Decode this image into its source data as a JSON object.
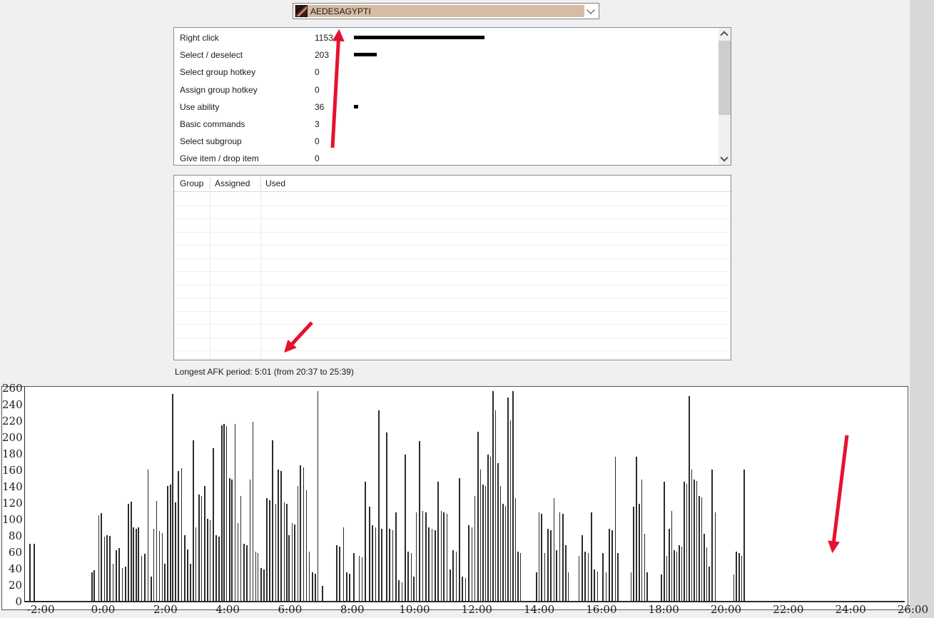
{
  "player_selector": {
    "selected_player": "AEDESAGYPTI",
    "icon": "player-race-icon"
  },
  "actions_panel": {
    "rows": [
      {
        "label": "Right click",
        "value": "1153",
        "count": 1153
      },
      {
        "label": "Select / deselect",
        "value": "203",
        "count": 203
      },
      {
        "label": "Select group hotkey",
        "value": "0",
        "count": 0
      },
      {
        "label": "Assign group hotkey",
        "value": "0",
        "count": 0
      },
      {
        "label": "Use ability",
        "value": "36",
        "count": 36
      },
      {
        "label": "Basic commands",
        "value": "3",
        "count": 3
      },
      {
        "label": "Select subgroup",
        "value": "0",
        "count": 0
      },
      {
        "label": "Give item / drop item",
        "value": "0",
        "count": 0
      }
    ]
  },
  "groups_table": {
    "columns": [
      "Group",
      "Assigned",
      "Used"
    ],
    "rows": []
  },
  "afk_label": "Longest AFK period: 5:01 (from 20:37 to 25:39)",
  "chart_data": {
    "type": "bar",
    "title": "",
    "xlabel": "",
    "ylabel": "",
    "ylim": [
      0,
      260
    ],
    "grid": false,
    "y_ticks": [
      0,
      20,
      40,
      60,
      80,
      100,
      120,
      140,
      160,
      180,
      200,
      220,
      240,
      260
    ],
    "x_ticks": [
      {
        "t": -2,
        "label": "-2:00"
      },
      {
        "t": 0,
        "label": "0:00"
      },
      {
        "t": 2,
        "label": "2:00"
      },
      {
        "t": 4,
        "label": "4:00"
      },
      {
        "t": 6,
        "label": "6:00"
      },
      {
        "t": 8,
        "label": "8:00"
      },
      {
        "t": 10,
        "label": "10:00"
      },
      {
        "t": 12,
        "label": "12:00"
      },
      {
        "t": 14,
        "label": "14:00"
      },
      {
        "t": 16,
        "label": "16:00"
      },
      {
        "t": 18,
        "label": "18:00"
      },
      {
        "t": 20,
        "label": "20:00"
      },
      {
        "t": 22,
        "label": "22:00"
      },
      {
        "t": 24,
        "label": "24:00"
      },
      {
        "t": 26,
        "label": "26:00"
      }
    ],
    "bars": [
      [
        -2.35,
        70
      ],
      [
        -2.21,
        70
      ],
      [
        -0.36,
        35
      ],
      [
        -0.29,
        37
      ],
      [
        -0.14,
        104
      ],
      [
        -0.06,
        107
      ],
      [
        0.05,
        78
      ],
      [
        0.12,
        80
      ],
      [
        0.22,
        79
      ],
      [
        0.32,
        45
      ],
      [
        0.42,
        62
      ],
      [
        0.52,
        64
      ],
      [
        0.62,
        40
      ],
      [
        0.72,
        42
      ],
      [
        0.82,
        118
      ],
      [
        0.9,
        121
      ],
      [
        0.97,
        90
      ],
      [
        1.06,
        88
      ],
      [
        1.14,
        90
      ],
      [
        1.24,
        55
      ],
      [
        1.34,
        57
      ],
      [
        1.44,
        160
      ],
      [
        1.54,
        30
      ],
      [
        1.63,
        88
      ],
      [
        1.72,
        122
      ],
      [
        1.81,
        85
      ],
      [
        1.9,
        83
      ],
      [
        1.98,
        45
      ],
      [
        2.08,
        140
      ],
      [
        2.16,
        142
      ],
      [
        2.24,
        252
      ],
      [
        2.33,
        120
      ],
      [
        2.42,
        158
      ],
      [
        2.52,
        162
      ],
      [
        2.62,
        80
      ],
      [
        2.72,
        63
      ],
      [
        2.81,
        45
      ],
      [
        2.9,
        196
      ],
      [
        2.98,
        90
      ],
      [
        3.08,
        130
      ],
      [
        3.16,
        128
      ],
      [
        3.26,
        140
      ],
      [
        3.35,
        100
      ],
      [
        3.44,
        98
      ],
      [
        3.54,
        186
      ],
      [
        3.63,
        80
      ],
      [
        3.72,
        78
      ],
      [
        3.82,
        214
      ],
      [
        3.89,
        216
      ],
      [
        3.96,
        213
      ],
      [
        4.06,
        150
      ],
      [
        4.14,
        148
      ],
      [
        4.24,
        216
      ],
      [
        4.33,
        95
      ],
      [
        4.42,
        128
      ],
      [
        4.52,
        70
      ],
      [
        4.62,
        68
      ],
      [
        4.72,
        148
      ],
      [
        4.81,
        218
      ],
      [
        4.9,
        60
      ],
      [
        4.97,
        58
      ],
      [
        5.08,
        40
      ],
      [
        5.16,
        38
      ],
      [
        5.26,
        125
      ],
      [
        5.35,
        123
      ],
      [
        5.44,
        196
      ],
      [
        5.54,
        118
      ],
      [
        5.63,
        160
      ],
      [
        5.72,
        158
      ],
      [
        5.82,
        120
      ],
      [
        5.9,
        118
      ],
      [
        5.97,
        80
      ],
      [
        6.07,
        95
      ],
      [
        6.15,
        93
      ],
      [
        6.25,
        140
      ],
      [
        6.34,
        165
      ],
      [
        6.44,
        163
      ],
      [
        6.53,
        135
      ],
      [
        6.62,
        60
      ],
      [
        6.72,
        35
      ],
      [
        6.81,
        33
      ],
      [
        6.9,
        256
      ],
      [
        7.05,
        18
      ],
      [
        7.5,
        68
      ],
      [
        7.6,
        66
      ],
      [
        7.72,
        90
      ],
      [
        7.82,
        35
      ],
      [
        7.92,
        33
      ],
      [
        8.05,
        58
      ],
      [
        8.22,
        55
      ],
      [
        8.32,
        53
      ],
      [
        8.42,
        145
      ],
      [
        8.55,
        115
      ],
      [
        8.65,
        92
      ],
      [
        8.75,
        90
      ],
      [
        8.85,
        232
      ],
      [
        8.95,
        88
      ],
      [
        9.1,
        205
      ],
      [
        9.2,
        88
      ],
      [
        9.3,
        86
      ],
      [
        9.4,
        108
      ],
      [
        9.5,
        25
      ],
      [
        9.6,
        23
      ],
      [
        9.7,
        178
      ],
      [
        9.8,
        60
      ],
      [
        9.9,
        58
      ],
      [
        9.98,
        30
      ],
      [
        10.06,
        108
      ],
      [
        10.16,
        195
      ],
      [
        10.26,
        110
      ],
      [
        10.36,
        108
      ],
      [
        10.46,
        90
      ],
      [
        10.56,
        88
      ],
      [
        10.66,
        86
      ],
      [
        10.76,
        145
      ],
      [
        10.86,
        110
      ],
      [
        10.94,
        108
      ],
      [
        11.04,
        106
      ],
      [
        11.14,
        38
      ],
      [
        11.24,
        62
      ],
      [
        11.34,
        60
      ],
      [
        11.44,
        150
      ],
      [
        11.54,
        30
      ],
      [
        11.64,
        28
      ],
      [
        11.74,
        92
      ],
      [
        11.84,
        90
      ],
      [
        11.94,
        128
      ],
      [
        12.04,
        206
      ],
      [
        12.12,
        160
      ],
      [
        12.2,
        142
      ],
      [
        12.28,
        140
      ],
      [
        12.36,
        178
      ],
      [
        12.44,
        176
      ],
      [
        12.52,
        256
      ],
      [
        12.6,
        232
      ],
      [
        12.68,
        168
      ],
      [
        12.76,
        140
      ],
      [
        12.84,
        118
      ],
      [
        12.92,
        116
      ],
      [
        13.0,
        248
      ],
      [
        13.08,
        220
      ],
      [
        13.16,
        256
      ],
      [
        13.24,
        125
      ],
      [
        13.32,
        60
      ],
      [
        13.4,
        58
      ],
      [
        13.92,
        35
      ],
      [
        14.0,
        108
      ],
      [
        14.08,
        106
      ],
      [
        14.18,
        58
      ],
      [
        14.28,
        88
      ],
      [
        14.38,
        86
      ],
      [
        14.48,
        125
      ],
      [
        14.56,
        62
      ],
      [
        14.66,
        108
      ],
      [
        14.76,
        106
      ],
      [
        14.86,
        68
      ],
      [
        14.94,
        35
      ],
      [
        15.28,
        55
      ],
      [
        15.38,
        80
      ],
      [
        15.48,
        60
      ],
      [
        15.58,
        58
      ],
      [
        15.68,
        108
      ],
      [
        15.78,
        38
      ],
      [
        15.88,
        36
      ],
      [
        16.05,
        58
      ],
      [
        16.15,
        35
      ],
      [
        16.25,
        88
      ],
      [
        16.35,
        86
      ],
      [
        16.45,
        176
      ],
      [
        16.53,
        58
      ],
      [
        16.95,
        35
      ],
      [
        17.03,
        115
      ],
      [
        17.12,
        176
      ],
      [
        17.21,
        118
      ],
      [
        17.3,
        148
      ],
      [
        17.39,
        82
      ],
      [
        17.47,
        35
      ],
      [
        17.92,
        32
      ],
      [
        18.02,
        145
      ],
      [
        18.1,
        55
      ],
      [
        18.18,
        88
      ],
      [
        18.26,
        110
      ],
      [
        18.34,
        62
      ],
      [
        18.42,
        60
      ],
      [
        18.5,
        68
      ],
      [
        18.58,
        66
      ],
      [
        18.66,
        145
      ],
      [
        18.74,
        143
      ],
      [
        18.82,
        250
      ],
      [
        18.9,
        160
      ],
      [
        18.98,
        148
      ],
      [
        19.06,
        146
      ],
      [
        19.14,
        128
      ],
      [
        19.22,
        126
      ],
      [
        19.3,
        82
      ],
      [
        19.38,
        65
      ],
      [
        19.46,
        42
      ],
      [
        19.56,
        160
      ],
      [
        19.66,
        108
      ],
      [
        20.25,
        32
      ],
      [
        20.33,
        60
      ],
      [
        20.42,
        58
      ],
      [
        20.5,
        55
      ],
      [
        20.58,
        160
      ]
    ]
  },
  "annotations": {
    "color": "#e8112d",
    "arrows": [
      {
        "name": "arrow-to-right-click-count",
        "from": [
          466,
          207
        ],
        "to": [
          475,
          45
        ]
      },
      {
        "name": "arrow-to-groups-table",
        "from": [
          437,
          452
        ],
        "to": [
          401,
          491
        ]
      },
      {
        "name": "arrow-to-chart-afk-area",
        "from": [
          1187,
          610
        ],
        "to": [
          1167,
          771
        ]
      }
    ]
  }
}
